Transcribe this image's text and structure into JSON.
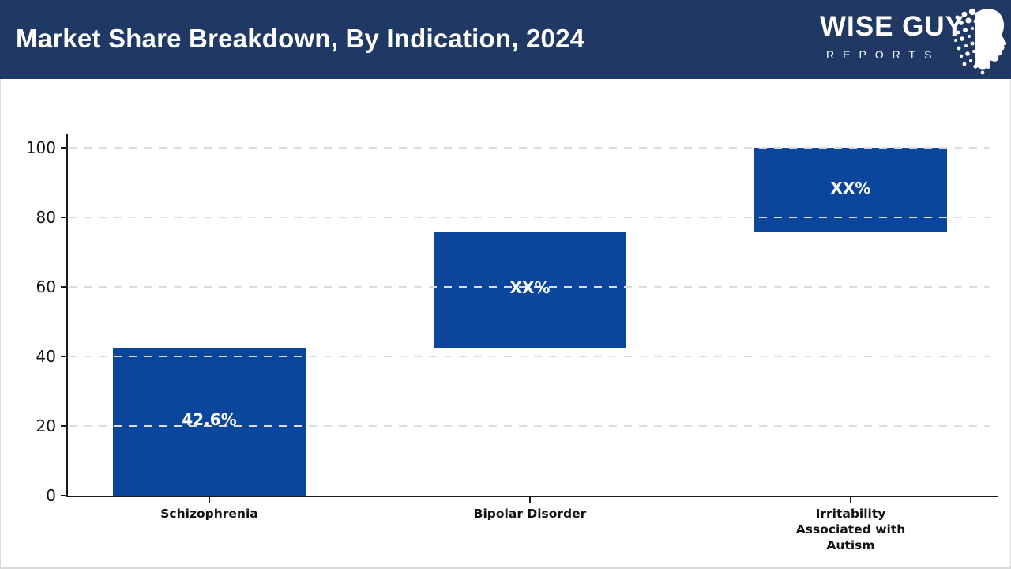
{
  "header": {
    "title": "Market Share Breakdown, By Indication, 2024",
    "logo": {
      "brand_line1": "WISE GUY",
      "brand_line2": "REPORTS"
    }
  },
  "watermark": {
    "line1": "WISE GUY",
    "line2": "REPORTS"
  },
  "colors": {
    "header_bg": "#1f3864",
    "bar": "#0a479c",
    "grid": "#dcdcdc",
    "axis": "#1a1a1a",
    "tick_text": "#111111",
    "title_text": "#ffffff",
    "bar_label_text": "#ffffff",
    "watermark": "#f2f2f3"
  },
  "chart_data": {
    "type": "bar",
    "variant": "waterfall-floating-segments",
    "title": "Market Share Breakdown, By Indication, 2024",
    "categories": [
      "Schizophrenia",
      "Bipolar Disorder",
      "Irritability Associated with Autism"
    ],
    "category_label_lines": [
      [
        "Schizophrenia"
      ],
      [
        "Bipolar Disorder"
      ],
      [
        "Irritability",
        "Associated with",
        "Autism"
      ]
    ],
    "series": [
      {
        "name": "Market Share (%)",
        "segments": [
          {
            "category": "Schizophrenia",
            "start": 0,
            "end": 42.6,
            "label": "42.6%"
          },
          {
            "category": "Bipolar Disorder",
            "start": 42.6,
            "end": 75.9,
            "label": "XX%"
          },
          {
            "category": "Irritability Associated with Autism",
            "start": 75.9,
            "end": 100,
            "label": "XX%"
          }
        ]
      }
    ],
    "xlabel": "",
    "ylabel": "",
    "ylim": [
      0,
      100
    ],
    "yticks": [
      0,
      20,
      40,
      60,
      80,
      100
    ],
    "grid": "dashed-horizontal",
    "legend": "none"
  }
}
